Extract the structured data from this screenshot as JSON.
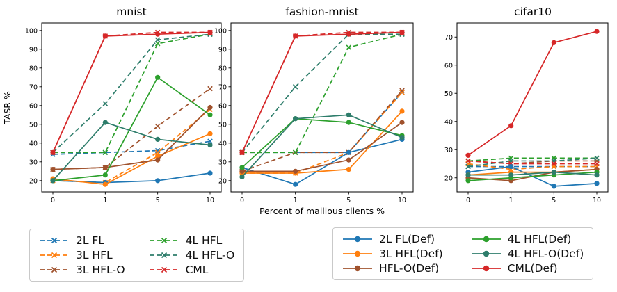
{
  "figure": {
    "xlabel": "Percent of mailious clients %",
    "ylabel": "TASR %"
  },
  "chart_data": [
    {
      "type": "line",
      "title": "mnist",
      "x": [
        0,
        1,
        5,
        10
      ],
      "x_tick_labels": [
        "0",
        "1",
        "5",
        "10"
      ],
      "ylim": [
        14,
        104
      ],
      "yticks": [
        20,
        30,
        40,
        50,
        60,
        70,
        80,
        90,
        100
      ],
      "series": [
        {
          "name": "2L FL",
          "color": "#1f77b4",
          "style": "dashed",
          "marker": "x",
          "values": [
            34,
            35,
            36,
            41
          ]
        },
        {
          "name": "3L HFL",
          "color": "#ff7f0e",
          "style": "dashed",
          "marker": "x",
          "values": [
            20,
            19,
            35,
            58
          ]
        },
        {
          "name": "3L HFL-O",
          "color": "#a0522d",
          "style": "dashed",
          "marker": "x",
          "values": [
            26,
            27,
            49,
            69
          ]
        },
        {
          "name": "4L HFL",
          "color": "#2ca02c",
          "style": "dashed",
          "marker": "x",
          "values": [
            35,
            35,
            93,
            98
          ]
        },
        {
          "name": "4L HFL-O",
          "color": "#2e7d6b",
          "style": "dashed",
          "marker": "x",
          "values": [
            35,
            61,
            95,
            98
          ]
        },
        {
          "name": "CML",
          "color": "#d62728",
          "style": "dashed",
          "marker": "x",
          "values": [
            35,
            97,
            99,
            99
          ]
        },
        {
          "name": "2L FL(Def)",
          "color": "#1f77b4",
          "style": "solid",
          "marker": "o",
          "values": [
            20,
            19,
            20,
            24
          ]
        },
        {
          "name": "3L HFL(Def)",
          "color": "#ff7f0e",
          "style": "solid",
          "marker": "o",
          "values": [
            21,
            18,
            33,
            45
          ]
        },
        {
          "name": "HFL-O(Def)",
          "color": "#a0522d",
          "style": "solid",
          "marker": "o",
          "values": [
            26,
            27,
            31,
            59
          ]
        },
        {
          "name": "4L HFL(Def)",
          "color": "#2ca02c",
          "style": "solid",
          "marker": "o",
          "values": [
            20,
            23,
            75,
            55
          ]
        },
        {
          "name": "4L HFL-O(Def)",
          "color": "#2e7d6b",
          "style": "solid",
          "marker": "o",
          "values": [
            20,
            51,
            42,
            39
          ]
        },
        {
          "name": "CML(Def)",
          "color": "#d62728",
          "style": "solid",
          "marker": "o",
          "values": [
            35,
            97,
            98,
            99
          ]
        }
      ]
    },
    {
      "type": "line",
      "title": "fashion-mnist",
      "x": [
        0,
        1,
        5,
        10
      ],
      "x_tick_labels": [
        "0",
        "1",
        "5",
        "10"
      ],
      "ylim": [
        14,
        104
      ],
      "yticks": [
        20,
        30,
        40,
        50,
        60,
        70,
        80,
        90,
        100
      ],
      "series": [
        {
          "name": "2L FL",
          "color": "#1f77b4",
          "style": "dashed",
          "marker": "x",
          "values": [
            35,
            35,
            35,
            67
          ]
        },
        {
          "name": "3L HFL",
          "color": "#ff7f0e",
          "style": "dashed",
          "marker": "x",
          "values": [
            24,
            24,
            35,
            67
          ]
        },
        {
          "name": "3L HFL-O",
          "color": "#a0522d",
          "style": "dashed",
          "marker": "x",
          "values": [
            25,
            35,
            35,
            68
          ]
        },
        {
          "name": "4L HFL",
          "color": "#2ca02c",
          "style": "dashed",
          "marker": "x",
          "values": [
            35,
            35,
            91,
            98
          ]
        },
        {
          "name": "4L HFL-O",
          "color": "#2e7d6b",
          "style": "dashed",
          "marker": "x",
          "values": [
            35,
            70,
            98,
            98
          ]
        },
        {
          "name": "CML",
          "color": "#d62728",
          "style": "dashed",
          "marker": "x",
          "values": [
            35,
            97,
            99,
            99
          ]
        },
        {
          "name": "2L FL(Def)",
          "color": "#1f77b4",
          "style": "solid",
          "marker": "o",
          "values": [
            27,
            18,
            35,
            42
          ]
        },
        {
          "name": "3L HFL(Def)",
          "color": "#ff7f0e",
          "style": "solid",
          "marker": "o",
          "values": [
            24,
            24,
            26,
            57
          ]
        },
        {
          "name": "HFL-O(Def)",
          "color": "#a0522d",
          "style": "solid",
          "marker": "o",
          "values": [
            25,
            25,
            31,
            51
          ]
        },
        {
          "name": "4L HFL(Def)",
          "color": "#2ca02c",
          "style": "solid",
          "marker": "o",
          "values": [
            27,
            53,
            51,
            44
          ]
        },
        {
          "name": "4L HFL-O(Def)",
          "color": "#2e7d6b",
          "style": "solid",
          "marker": "o",
          "values": [
            22,
            53,
            55,
            43
          ]
        },
        {
          "name": "CML(Def)",
          "color": "#d62728",
          "style": "solid",
          "marker": "o",
          "values": [
            35,
            97,
            98,
            99
          ]
        }
      ]
    },
    {
      "type": "line",
      "title": "cifar10",
      "x": [
        0,
        1,
        5,
        10
      ],
      "x_tick_labels": [
        "0",
        "1",
        "5",
        "10"
      ],
      "ylim": [
        15,
        75
      ],
      "yticks": [
        20,
        30,
        40,
        50,
        60,
        70
      ],
      "series": [
        {
          "name": "2L FL",
          "color": "#1f77b4",
          "style": "dashed",
          "marker": "x",
          "values": [
            24,
            24,
            24,
            24
          ]
        },
        {
          "name": "3L HFL",
          "color": "#ff7f0e",
          "style": "dashed",
          "marker": "x",
          "values": [
            25,
            23,
            24,
            24
          ]
        },
        {
          "name": "3L HFL-O",
          "color": "#a0522d",
          "style": "dashed",
          "marker": "x",
          "values": [
            26,
            25,
            26,
            26
          ]
        },
        {
          "name": "4L HFL",
          "color": "#2ca02c",
          "style": "dashed",
          "marker": "x",
          "values": [
            26,
            27,
            27,
            27
          ]
        },
        {
          "name": "4L HFL-O",
          "color": "#2e7d6b",
          "style": "dashed",
          "marker": "x",
          "values": [
            24,
            26,
            26,
            27
          ]
        },
        {
          "name": "CML",
          "color": "#d62728",
          "style": "dashed",
          "marker": "x",
          "values": [
            26,
            25,
            25,
            25
          ]
        },
        {
          "name": "2L FL(Def)",
          "color": "#1f77b4",
          "style": "solid",
          "marker": "o",
          "values": [
            22,
            24,
            17,
            18
          ]
        },
        {
          "name": "3L HFL(Def)",
          "color": "#ff7f0e",
          "style": "solid",
          "marker": "o",
          "values": [
            21,
            22,
            22,
            23
          ]
        },
        {
          "name": "HFL-O(Def)",
          "color": "#a0522d",
          "style": "solid",
          "marker": "o",
          "values": [
            20,
            19,
            22,
            23
          ]
        },
        {
          "name": "4L HFL(Def)",
          "color": "#2ca02c",
          "style": "solid",
          "marker": "o",
          "values": [
            19,
            20,
            21,
            22
          ]
        },
        {
          "name": "4L HFL-O(Def)",
          "color": "#2e7d6b",
          "style": "solid",
          "marker": "o",
          "values": [
            21,
            21,
            22,
            21
          ]
        },
        {
          "name": "CML(Def)",
          "color": "#d62728",
          "style": "solid",
          "marker": "o",
          "values": [
            28,
            38.5,
            68,
            72
          ]
        }
      ]
    }
  ],
  "legends": [
    {
      "name": "attack-legend",
      "items": [
        {
          "label": "2L FL",
          "color": "#1f77b4",
          "style": "dashed",
          "marker": "x"
        },
        {
          "label": "3L HFL",
          "color": "#ff7f0e",
          "style": "dashed",
          "marker": "x"
        },
        {
          "label": "3L HFL-O",
          "color": "#a0522d",
          "style": "dashed",
          "marker": "x"
        },
        {
          "label": "4L HFL",
          "color": "#2ca02c",
          "style": "dashed",
          "marker": "x"
        },
        {
          "label": "4L HFL-O",
          "color": "#2e7d6b",
          "style": "dashed",
          "marker": "x"
        },
        {
          "label": "CML",
          "color": "#d62728",
          "style": "dashed",
          "marker": "x"
        }
      ]
    },
    {
      "name": "defense-legend",
      "items": [
        {
          "label": "2L FL(Def)",
          "color": "#1f77b4",
          "style": "solid",
          "marker": "o"
        },
        {
          "label": "3L HFL(Def)",
          "color": "#ff7f0e",
          "style": "solid",
          "marker": "o"
        },
        {
          "label": "HFL-O(Def)",
          "color": "#a0522d",
          "style": "solid",
          "marker": "o"
        },
        {
          "label": "4L HFL(Def)",
          "color": "#2ca02c",
          "style": "solid",
          "marker": "o"
        },
        {
          "label": "4L HFL-O(Def)",
          "color": "#2e7d6b",
          "style": "solid",
          "marker": "o"
        },
        {
          "label": "CML(Def)",
          "color": "#d62728",
          "style": "solid",
          "marker": "o"
        }
      ]
    }
  ]
}
